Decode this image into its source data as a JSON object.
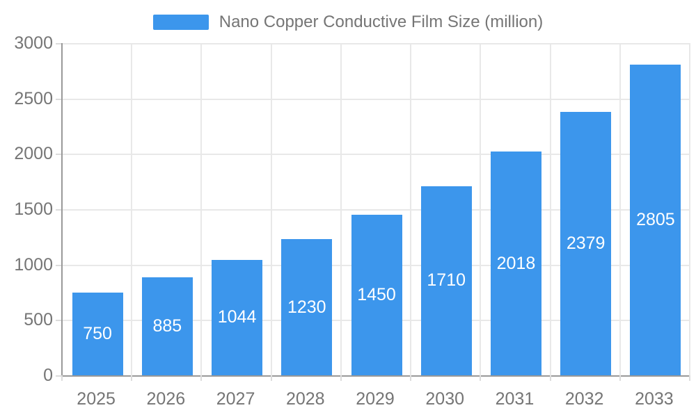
{
  "legend": {
    "label": "Nano Copper Conductive Film Size (million)"
  },
  "chart_data": {
    "type": "bar",
    "title": "Nano Copper Conductive Film Size (million)",
    "categories": [
      "2025",
      "2026",
      "2027",
      "2028",
      "2029",
      "2030",
      "2031",
      "2032",
      "2033"
    ],
    "values": [
      750,
      885,
      1044,
      1230,
      1450,
      1710,
      2018,
      2379,
      2805
    ],
    "series_name": "Nano Copper Conductive Film Size (million)",
    "xlabel": "",
    "ylabel": "",
    "ylim": [
      0,
      3000
    ],
    "yticks": [
      0,
      500,
      1000,
      1500,
      2000,
      2500,
      3000
    ],
    "grid": true,
    "legend_position": "top-center",
    "value_labels": "inside-center",
    "colors": {
      "bar": "#3C96EC",
      "value_text": "#FFFFFF",
      "axis_line": "#999999",
      "grid_line": "#E8E8E8",
      "tick": "#DCDCDC",
      "axis_text": "#757575",
      "legend_text": "#757575",
      "background": "#FFFFFF"
    }
  }
}
